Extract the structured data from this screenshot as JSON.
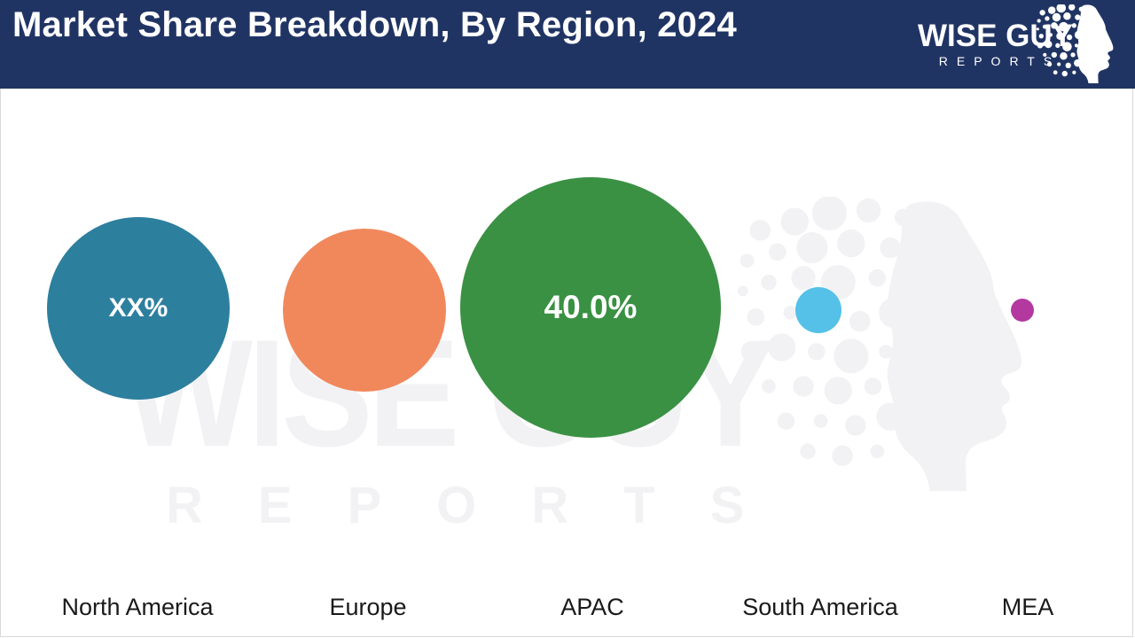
{
  "header": {
    "title": "Market Share Breakdown, By Region, 2024",
    "logo": {
      "primary": "WISE GUY",
      "secondary": "REPORTS"
    }
  },
  "watermark": {
    "primary": "WISE GUY",
    "secondary": "REPORTS"
  },
  "chart_data": {
    "type": "bubble",
    "title": "Market Share Breakdown, By Region, 2024",
    "categories": [
      "North America",
      "Europe",
      "APAC",
      "South America",
      "MEA"
    ],
    "labels": [
      "XX%",
      "",
      "40.0%",
      "",
      ""
    ],
    "values_percent": [
      null,
      null,
      40.0,
      null,
      null
    ],
    "bubble_radius_px": [
      103,
      92,
      147,
      26,
      13
    ],
    "colors": [
      "#2d7f9e",
      "#f0885c",
      "#3a9143",
      "#55c1e8",
      "#b339a0"
    ],
    "legend_position": "bottom-category-labels"
  }
}
